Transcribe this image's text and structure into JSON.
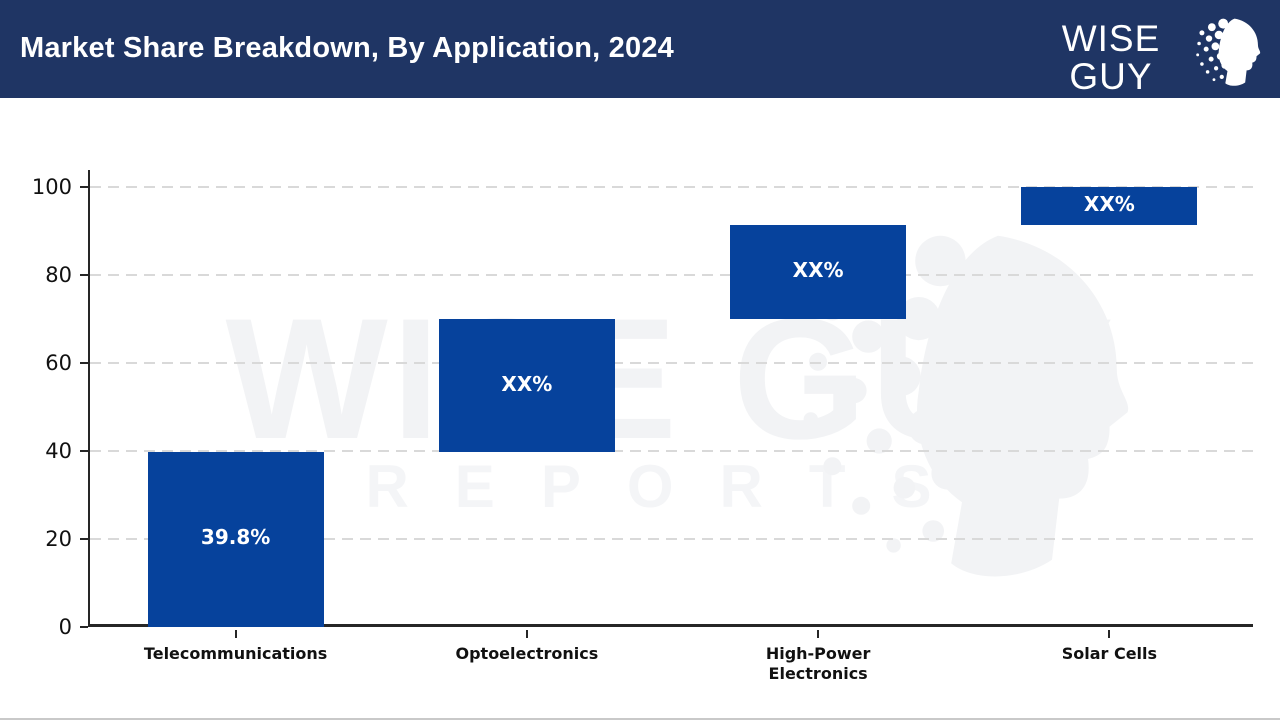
{
  "header": {
    "title": "Market Share Breakdown, By Application, 2024",
    "logo": {
      "line1": "WISE GUY",
      "line2": "REPORTS"
    }
  },
  "watermark": {
    "line1": "WISE GUY",
    "line2": "REPORTS"
  },
  "colors": {
    "header_bg": "#1f3564",
    "bar": "#06429c",
    "bar_label": "#ffffff",
    "gridline": "#d9d9d9",
    "axis": "#262626",
    "watermark": "#f2f3f5"
  },
  "chart_data": {
    "type": "bar",
    "subtype": "waterfall-breakdown",
    "title": "Market Share Breakdown, By Application, 2024",
    "xlabel": "",
    "ylabel": "",
    "categories": [
      "Telecommunications",
      "Optoelectronics",
      "High-Power Electronics",
      "Solar Cells"
    ],
    "tick_labels": [
      "Telecommunications",
      "Optoelectronics",
      "High-Power\nElectronics",
      "Solar Cells"
    ],
    "segments": [
      {
        "category": "Telecommunications",
        "start": 0,
        "end": 39.8,
        "label": "39.8%"
      },
      {
        "category": "Optoelectronics",
        "start": 39.8,
        "end": 70,
        "label": "XX%"
      },
      {
        "category": "High-Power Electronics",
        "start": 70,
        "end": 91.4,
        "label": "XX%"
      },
      {
        "category": "Solar Cells",
        "start": 91.4,
        "end": 100,
        "label": "XX%"
      }
    ],
    "yticks": [
      0,
      20,
      40,
      60,
      80,
      100
    ],
    "ylim": [
      0,
      103.9
    ],
    "grid": "horizontal-dashed",
    "legend": "none"
  }
}
